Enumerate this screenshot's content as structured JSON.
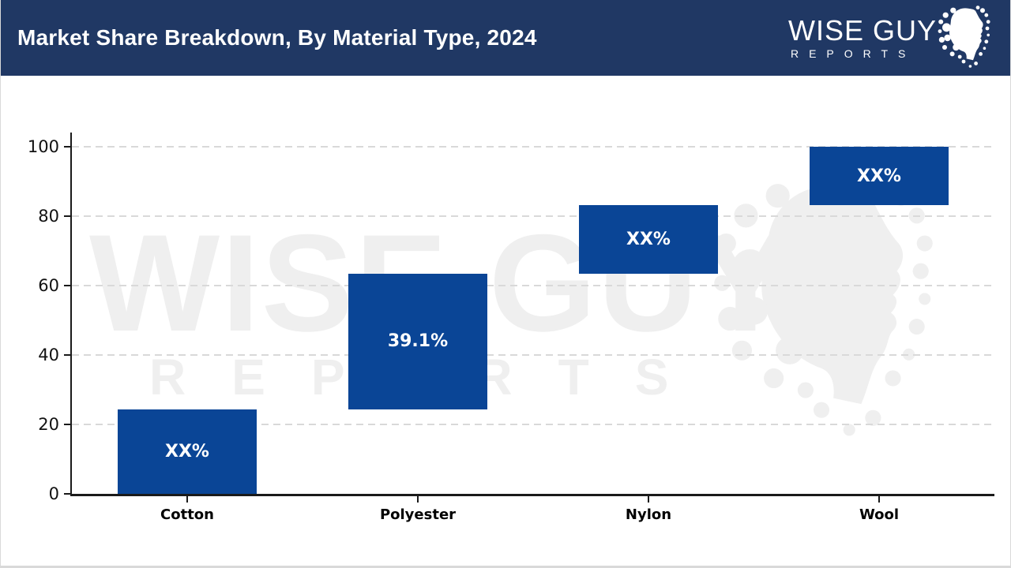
{
  "header": {
    "title": "Market Share Breakdown, By Material Type, 2024",
    "logo": {
      "line1": "WISE GUY",
      "line2": "REPORTS"
    }
  },
  "watermark": {
    "line1": "WISE GUY",
    "line2": "REPORTS"
  },
  "icons": {
    "logo_head": "dotted-head-profile-icon",
    "watermark_head": "dotted-head-profile-icon"
  },
  "colors": {
    "header_bg": "#203864",
    "header_text": "#ffffff",
    "bar_fill": "#0a4596",
    "bar_label": "#ffffff",
    "axis": "#1a1a1a",
    "grid": "#d9d9d9",
    "tick_label": "#111111",
    "watermark": "#efefef",
    "page_bg": "#ffffff",
    "border": "#d9d9d9"
  },
  "chart_data": {
    "type": "bar",
    "subtype": "floating segmented percentage bars (waterfall-style, cumulative 0-100)",
    "title": "Market Share Breakdown, By Material Type, 2024",
    "categories": [
      "Cotton",
      "Polyester",
      "Nylon",
      "Wool"
    ],
    "bars": [
      {
        "category": "Cotton",
        "start": 0,
        "end": 24.4,
        "value": 24.4,
        "label": "XX%"
      },
      {
        "category": "Polyester",
        "start": 24.4,
        "end": 63.5,
        "value": 39.1,
        "label": "39.1%"
      },
      {
        "category": "Nylon",
        "start": 63.5,
        "end": 83.1,
        "value": 19.6,
        "label": "XX%"
      },
      {
        "category": "Wool",
        "start": 83.1,
        "end": 100,
        "value": 16.9,
        "label": "XX%"
      }
    ],
    "xlabel": "",
    "ylabel": "",
    "ylim": [
      0,
      100
    ],
    "yticks": [
      0,
      20,
      40,
      60,
      80,
      100
    ],
    "grid": "horizontal dashed",
    "legend": "none",
    "note": "all segment values except Polyester are redacted as XX% in the image"
  }
}
